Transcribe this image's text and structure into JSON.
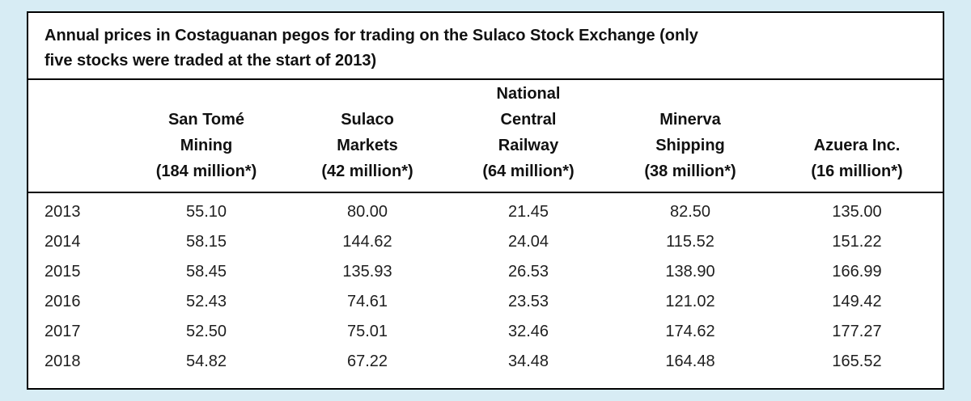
{
  "colors": {
    "page_background": "#d7ecf4",
    "table_background": "#ffffff",
    "border": "#000000",
    "text": "#111111"
  },
  "table": {
    "caption": "Annual prices in Costaguanan pegos for trading on the Sulaco Stock Exchange (only\nfive stocks were traded at the start of 2013)",
    "year_column_header": "",
    "headers": [
      "San Tomé\nMining\n(184 million*)",
      "Sulaco\nMarkets\n(42 million*)",
      "National\nCentral\nRailway\n(64 million*)",
      "Minerva\nShipping\n(38 million*)",
      "Azuera Inc.\n(16 million*)"
    ],
    "rows": [
      {
        "year": "2013",
        "values": [
          "55.10",
          "80.00",
          "21.45",
          "82.50",
          "135.00"
        ]
      },
      {
        "year": "2014",
        "values": [
          "58.15",
          "144.62",
          "24.04",
          "115.52",
          "151.22"
        ]
      },
      {
        "year": "2015",
        "values": [
          "58.45",
          "135.93",
          "26.53",
          "138.90",
          "166.99"
        ]
      },
      {
        "year": "2016",
        "values": [
          "52.43",
          "74.61",
          "23.53",
          "121.02",
          "149.42"
        ]
      },
      {
        "year": "2017",
        "values": [
          "52.50",
          "75.01",
          "32.46",
          "174.62",
          "177.27"
        ]
      },
      {
        "year": "2018",
        "values": [
          "54.82",
          "67.22",
          "34.48",
          "164.48",
          "165.52"
        ]
      }
    ]
  },
  "chart_data": {
    "type": "table",
    "title": "Annual prices in Costaguanan pegos for trading on the Sulaco Stock Exchange (only five stocks were traded at the start of 2013)",
    "categories": [
      "2013",
      "2014",
      "2015",
      "2016",
      "2017",
      "2018"
    ],
    "series": [
      {
        "name": "San Tomé Mining (184 million*)",
        "values": [
          55.1,
          58.15,
          58.45,
          52.43,
          52.5,
          54.82
        ]
      },
      {
        "name": "Sulaco Markets (42 million*)",
        "values": [
          80.0,
          144.62,
          135.93,
          74.61,
          75.01,
          67.22
        ]
      },
      {
        "name": "National Central Railway (64 million*)",
        "values": [
          21.45,
          24.04,
          26.53,
          23.53,
          32.46,
          34.48
        ]
      },
      {
        "name": "Minerva Shipping (38 million*)",
        "values": [
          82.5,
          115.52,
          138.9,
          121.02,
          174.62,
          164.48
        ]
      },
      {
        "name": "Azuera Inc. (16 million*)",
        "values": [
          135.0,
          151.22,
          166.99,
          149.42,
          177.27,
          165.52
        ]
      }
    ],
    "layout": {
      "grid": false,
      "legend_position": "none",
      "units": "Costaguanan pegos"
    }
  }
}
